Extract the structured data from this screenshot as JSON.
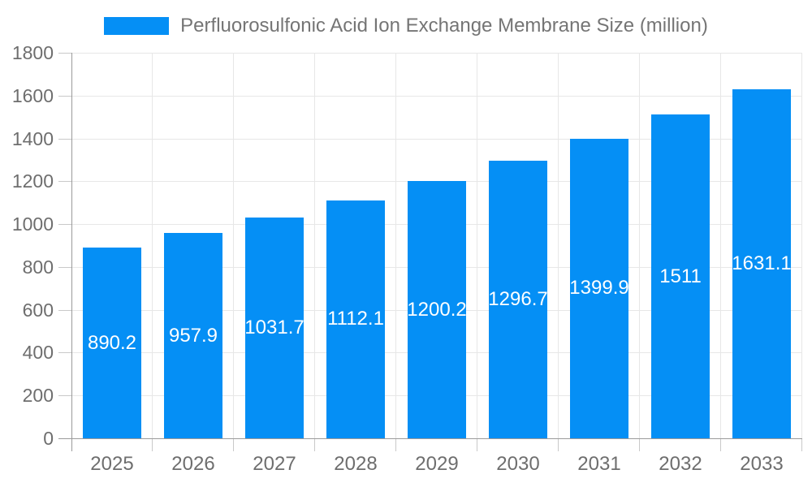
{
  "legend": {
    "label": "Perfluorosulfonic Acid Ion Exchange Membrane Size (million)"
  },
  "chart_data": {
    "type": "bar",
    "title": "Perfluorosulfonic Acid Ion Exchange Membrane Size (million)",
    "categories": [
      "2025",
      "2026",
      "2027",
      "2028",
      "2029",
      "2030",
      "2031",
      "2032",
      "2033"
    ],
    "values": [
      890.2,
      957.9,
      1031.7,
      1112.1,
      1200.2,
      1296.7,
      1399.9,
      1511,
      1631.1
    ],
    "xlabel": "",
    "ylabel": "",
    "ylim": [
      0,
      1800
    ],
    "yticks": [
      0,
      200,
      400,
      600,
      800,
      1000,
      1200,
      1400,
      1600,
      1800
    ],
    "grid": true,
    "legend_position": "top",
    "bar_color": "#058ff5",
    "value_label_color": "#ffffff",
    "axis_color": "#9a9a9a",
    "tick_color": "#c9c9c9",
    "gridline_color": "#e7e7e7",
    "label_color": "#6e6e6e",
    "title_color": "#757575",
    "background": "#ffffff"
  }
}
